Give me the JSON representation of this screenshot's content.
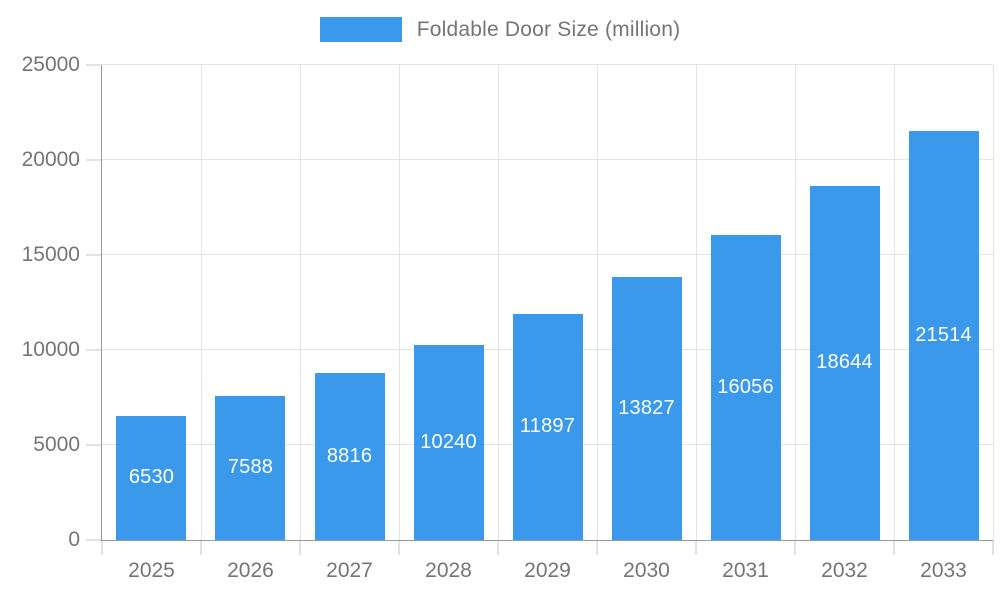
{
  "chart_data": {
    "type": "bar",
    "title": "Foldable Door Size (million)",
    "categories": [
      "2025",
      "2026",
      "2027",
      "2028",
      "2029",
      "2030",
      "2031",
      "2032",
      "2033"
    ],
    "series": [
      {
        "name": "Foldable Door Size (million)",
        "values": [
          6530,
          7588,
          8816,
          10240,
          11897,
          13827,
          16056,
          18644,
          21514
        ]
      }
    ],
    "value_labels": [
      "6530",
      "7588",
      "8816",
      "10240",
      "11897",
      "13827",
      "16056",
      "18644",
      "21514"
    ],
    "xlabel": "",
    "ylabel": "",
    "ylim": [
      0,
      25000
    ],
    "yticks": [
      0,
      5000,
      10000,
      15000,
      20000,
      25000
    ],
    "ytick_labels": [
      "0",
      "5000",
      "10000",
      "15000",
      "20000",
      "25000"
    ],
    "grid": "on",
    "legend_position": "top-center",
    "colors": {
      "bar": "#3B99EC",
      "bar_value_text": "#ffffff",
      "axis_text": "#757575",
      "gridline": "#e4e4e4",
      "axis_line": "#999999",
      "tick": "#c4c4c4",
      "background": "#ffffff"
    }
  }
}
